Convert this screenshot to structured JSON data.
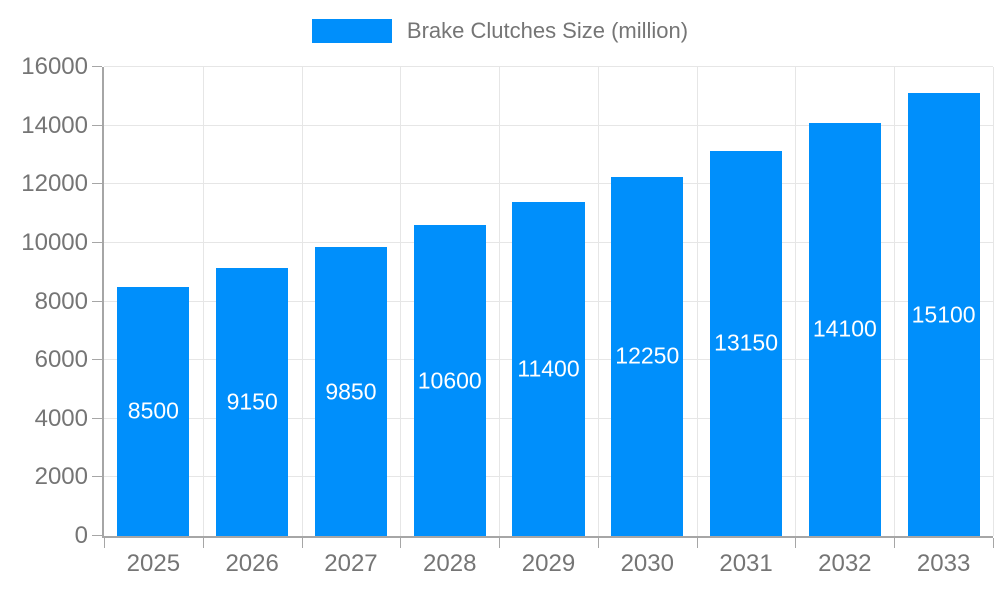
{
  "chart_data": {
    "type": "bar",
    "title": "",
    "xlabel": "",
    "ylabel": "",
    "categories": [
      "2025",
      "2026",
      "2027",
      "2028",
      "2029",
      "2030",
      "2031",
      "2032",
      "2033"
    ],
    "series": [
      {
        "name": "Brake Clutches Size (million)",
        "values": [
          8500,
          9150,
          9850,
          10600,
          11400,
          12250,
          13150,
          14100,
          15100
        ]
      }
    ],
    "ylim": [
      0,
      16000
    ],
    "yticks": [
      0,
      2000,
      4000,
      6000,
      8000,
      10000,
      12000,
      14000,
      16000
    ],
    "grid": true,
    "legend_position": "top-center",
    "colors": {
      "bar": "#008FFB",
      "bar_label": "#ffffff",
      "axis_line": "#a6a6a6",
      "grid_line": "#e6e6e6",
      "tick_label": "#757575",
      "legend_text": "#757575"
    }
  }
}
